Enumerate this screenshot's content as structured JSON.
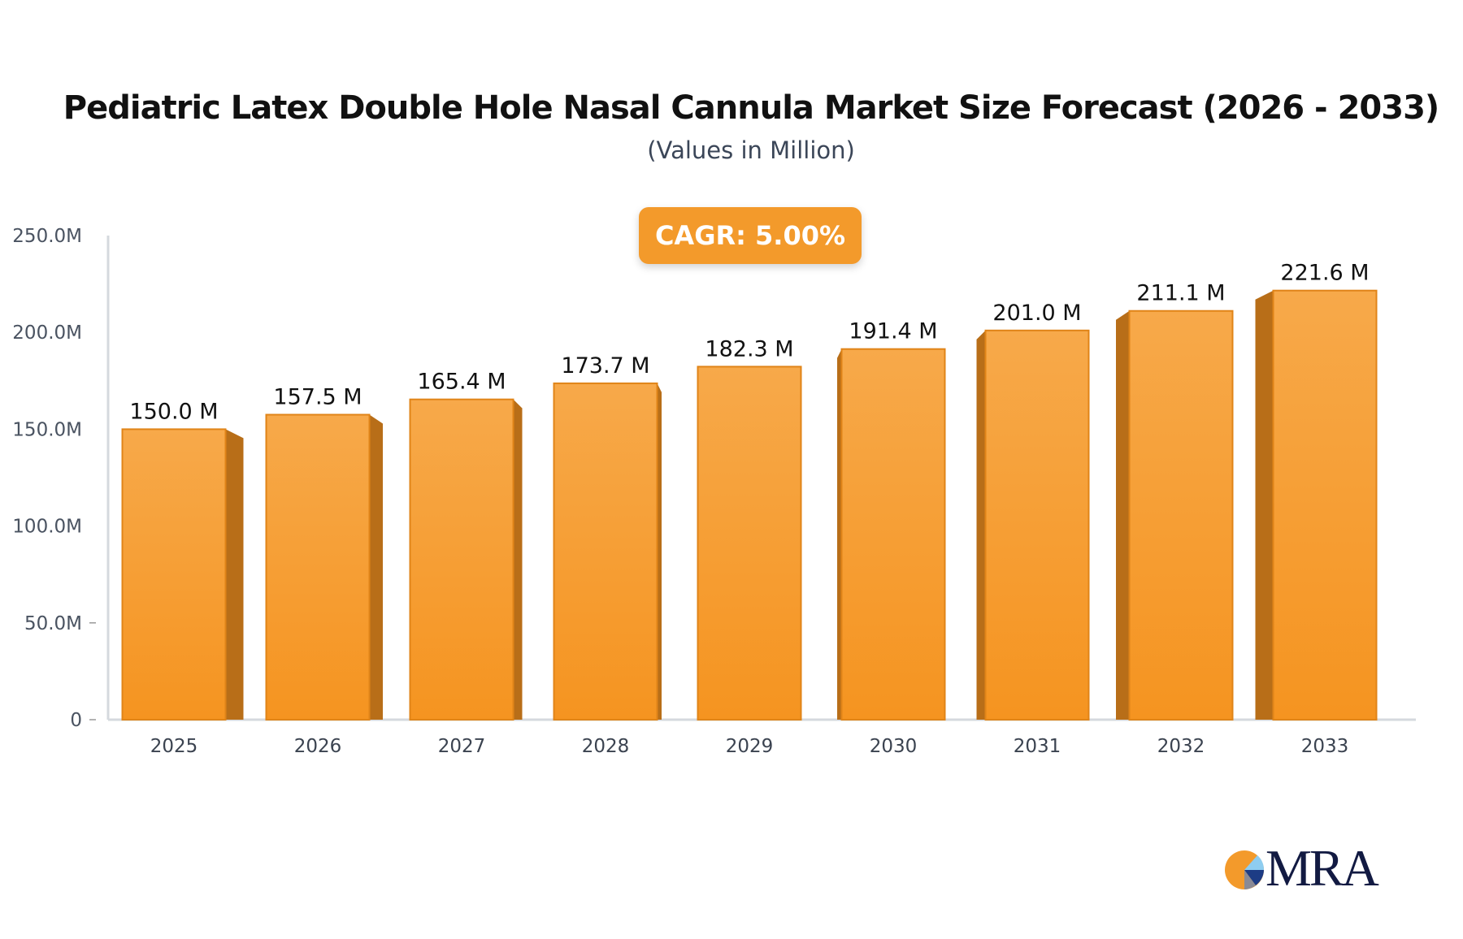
{
  "chart_data": {
    "type": "bar",
    "title": "Pediatric Latex Double Hole Nasal Cannula Market Size Forecast (2026 - 2033)",
    "subtitle": "(Values in Million)",
    "annotation": "CAGR: 5.00%",
    "categories": [
      "2025",
      "2026",
      "2027",
      "2028",
      "2029",
      "2030",
      "2031",
      "2032",
      "2033"
    ],
    "values": [
      150.0,
      157.5,
      165.4,
      173.7,
      182.3,
      191.4,
      201.0,
      211.1,
      221.6
    ],
    "data_labels": [
      "150.0 M",
      "157.5 M",
      "165.4 M",
      "173.7 M",
      "182.3 M",
      "191.4 M",
      "201.0 M",
      "211.1 M",
      "221.6 M"
    ],
    "ylim": [
      0,
      250
    ],
    "yticks": [
      0,
      50,
      100,
      150,
      200,
      250
    ],
    "ytick_labels": [
      "0",
      "50.0M",
      "100.0M",
      "150.0M",
      "200.0M",
      "250.0M"
    ],
    "xlabel": "",
    "ylabel": "",
    "grid": false,
    "colors": {
      "bar_top": "#f7a94a",
      "bar_bottom": "#f59420",
      "bar_side": "#b86e18",
      "cagr": "#f39a2b"
    }
  },
  "logo": {
    "text": "MRA"
  }
}
